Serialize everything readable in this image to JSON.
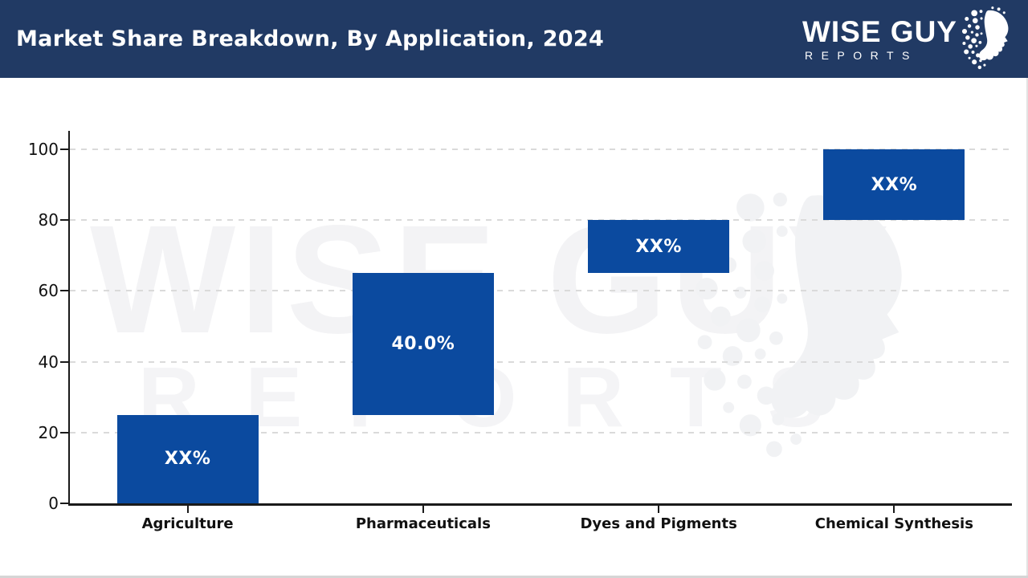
{
  "header": {
    "title": "Market Share Breakdown, By Application, 2024",
    "logo": {
      "line1": "WISE GUY",
      "line2": "REPORTS"
    }
  },
  "watermark": {
    "line1": "WISE GUY",
    "line2": "REPORTS"
  },
  "colors": {
    "header_background": "#213a64",
    "bar_fill": "#0b4a9f",
    "bar_label_text": "#ffffff",
    "axis": "#1a1a1a",
    "gridline": "#dadada",
    "watermark": "#f3f3f5",
    "page_border": "#d5d5d5",
    "title_text": "#ffffff",
    "tick_text": "#111111"
  },
  "chart_data": {
    "type": "bar",
    "subtype": "waterfall",
    "title": "Market Share Breakdown, By Application, 2024",
    "categories": [
      "Agriculture",
      "Pharmaceuticals",
      "Dyes and Pigments",
      "Chemical Synthesis"
    ],
    "bars": [
      {
        "category": "Agriculture",
        "start": 0,
        "end": 25,
        "label": "XX%"
      },
      {
        "category": "Pharmaceuticals",
        "start": 25,
        "end": 65,
        "label": "40.0%"
      },
      {
        "category": "Dyes and Pigments",
        "start": 65,
        "end": 80,
        "label": "XX%"
      },
      {
        "category": "Chemical Synthesis",
        "start": 80,
        "end": 100,
        "label": "XX%"
      }
    ],
    "values_note": "segment sizes: 25, 40, 15, 20 (labels hidden as XX% except Pharmaceuticals 40.0%)",
    "xlabel": "",
    "ylabel": "",
    "yticks": [
      0,
      20,
      40,
      60,
      80,
      100
    ],
    "ylim": [
      0,
      105.2
    ],
    "grid": "horizontal-dashed",
    "legend": false
  }
}
